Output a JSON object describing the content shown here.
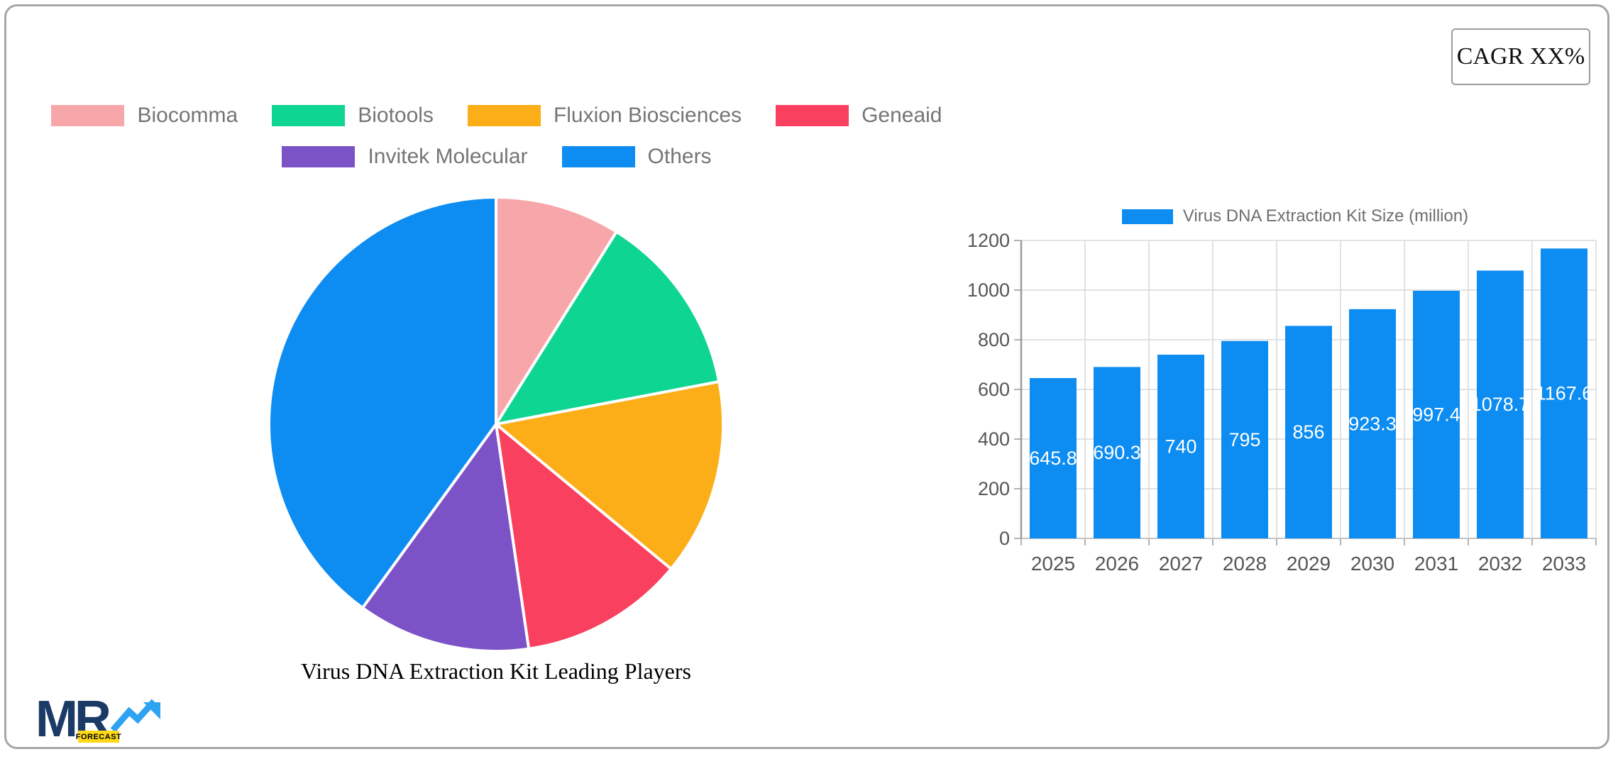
{
  "cagr_box": {
    "label": "CAGR XX%"
  },
  "logo": {
    "brand": "MR",
    "badge": "FORECAST",
    "brand_color": "#1b3a66",
    "arrow_color": "#2ea3f2",
    "badge_bg": "#ffd917"
  },
  "chart_data": [
    {
      "type": "pie",
      "title": "Virus DNA Extraction Kit Leading Players",
      "labels": [
        "Biocomma",
        "Biotools",
        "Fluxion Biosciences",
        "Geneaid",
        "Invitek Molecular",
        "Others"
      ],
      "values_percent": [
        8.9,
        13.1,
        14.0,
        11.7,
        12.3,
        40.0
      ],
      "colors": [
        "#f7a6aa",
        "#0fd592",
        "#fbae17",
        "#f9405e",
        "#7c53c7",
        "#0d8cf2"
      ],
      "start_angle_deg": 0,
      "direction": "clockwise",
      "legend_rows": [
        4,
        2
      ],
      "legend_position": "top"
    },
    {
      "type": "bar",
      "legend_label": "Virus DNA Extraction Kit Size (million)",
      "categories": [
        "2025",
        "2026",
        "2027",
        "2028",
        "2029",
        "2030",
        "2031",
        "2032",
        "2033"
      ],
      "values": [
        645.8,
        690.3,
        740,
        795,
        856,
        923.3,
        997.4,
        1078.7,
        1167.6
      ],
      "value_labels": [
        "645.8",
        "690.3",
        "740",
        "795",
        "856",
        "923.3",
        "997.4",
        "1078.7",
        "1167.6"
      ],
      "bar_color": "#0d8cf2",
      "value_label_color": "#ffffff",
      "ylim": [
        0,
        1200
      ],
      "yticks": [
        0,
        200,
        400,
        600,
        800,
        1000,
        1200
      ],
      "grid": true,
      "axis_text_color": "#565656",
      "gridline_color": "#d9d9d9"
    }
  ]
}
